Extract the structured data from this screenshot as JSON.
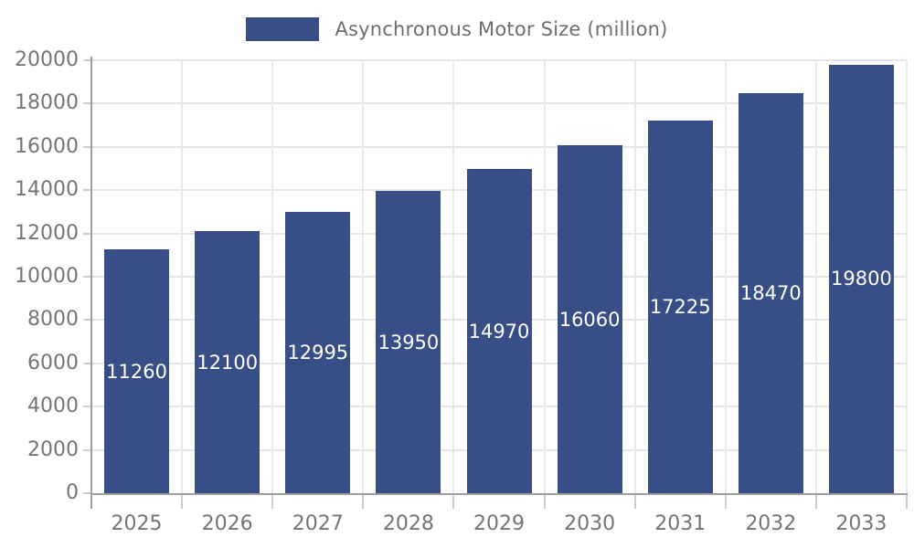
{
  "chart_data": {
    "type": "bar",
    "title": "",
    "legend": "Asynchronous Motor Size (million)",
    "legend_position": "top",
    "categories": [
      "2025",
      "2026",
      "2027",
      "2028",
      "2029",
      "2030",
      "2031",
      "2032",
      "2033"
    ],
    "series": [
      {
        "name": "Asynchronous Motor Size (million)",
        "values": [
          11260,
          12100,
          12995,
          13950,
          14970,
          16060,
          17225,
          18470,
          19800
        ]
      }
    ],
    "value_labels": [
      "11260",
      "12100",
      "12995",
      "13950",
      "14970",
      "16060",
      "17225",
      "18470",
      "19800"
    ],
    "xlabel": "",
    "ylabel": "",
    "ylim": [
      0,
      20000
    ],
    "y_ticks": [
      0,
      2000,
      4000,
      6000,
      8000,
      10000,
      12000,
      14000,
      16000,
      18000,
      20000
    ],
    "grid": true,
    "colors": {
      "bar": "#374e87",
      "value_label": "#ffffff",
      "axis_text": "#757575",
      "legend_text": "#6e6e6e",
      "axis_line": "#9e9e9e",
      "gridline": "#e5e5e5"
    }
  }
}
